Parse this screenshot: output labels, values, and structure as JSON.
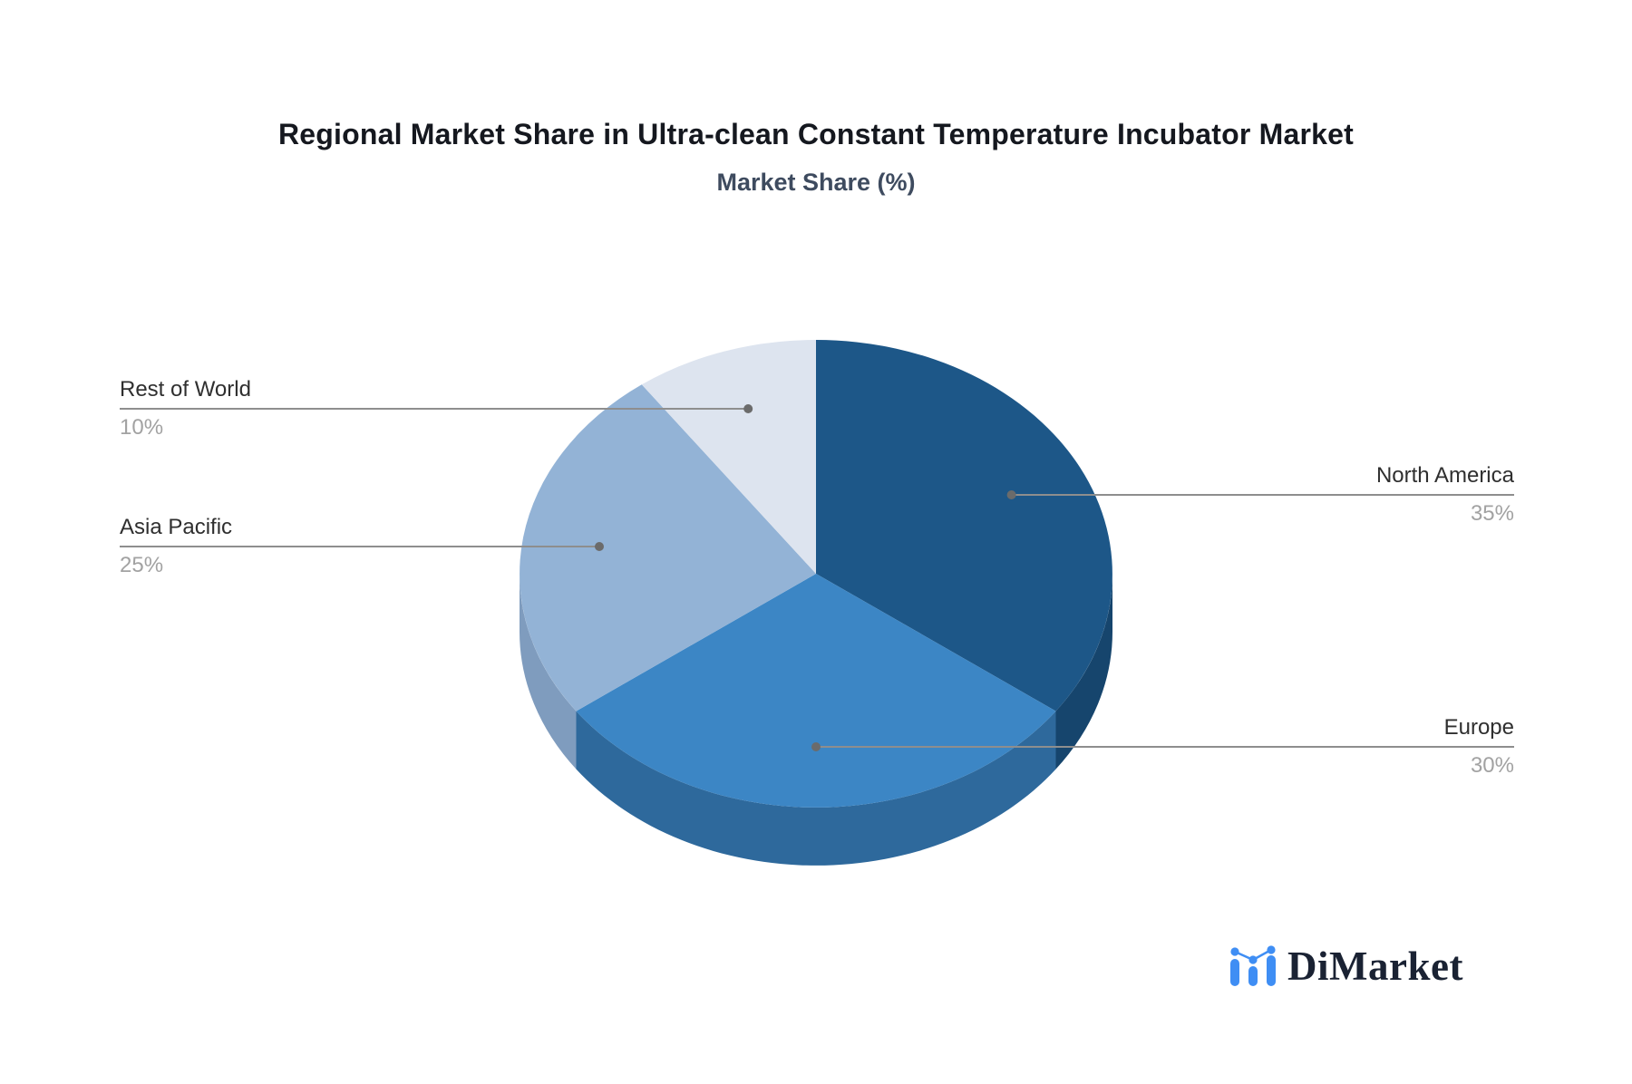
{
  "header": {
    "title": "Regional Market Share in Ultra-clean Constant Temperature Incubator Market",
    "subtitle": "Market Share (%)",
    "title_color": "#15181f",
    "subtitle_color": "#3e4b5f"
  },
  "chart_data": {
    "type": "pie",
    "title": "Regional Market Share in Ultra-clean Constant Temperature Incubator Market",
    "subtitle": "Market Share (%)",
    "unit": "%",
    "effect": "3d",
    "start_angle": "12-o-clock",
    "direction": "clockwise",
    "legend_position": "callout-labels",
    "slices": [
      {
        "label": "North America",
        "value": 35,
        "display": "35%",
        "color": "#1d5788",
        "side_color": "#16456d",
        "label_side": "right"
      },
      {
        "label": "Europe",
        "value": 30,
        "display": "30%",
        "color": "#3c86c5",
        "side_color": "#2e699c",
        "label_side": "right"
      },
      {
        "label": "Asia Pacific",
        "value": 25,
        "display": "25%",
        "color": "#93b3d6",
        "side_color": "#7f9cbe",
        "label_side": "left"
      },
      {
        "label": "Rest of World",
        "value": 10,
        "display": "10%",
        "color": "#dde4ef",
        "side_color": "#c3cfde",
        "label_side": "left"
      }
    ],
    "label_color": "#2f2f2f",
    "value_color": "#a2a2a2",
    "leader_line_color": "#8e8e8e",
    "leader_dot_color": "#6b6b6b"
  },
  "logo": {
    "name": "DiMarket",
    "icon": "bar-chart-logo-icon",
    "icon_color": "#3f8ef4",
    "text_color": "#1a2233"
  }
}
